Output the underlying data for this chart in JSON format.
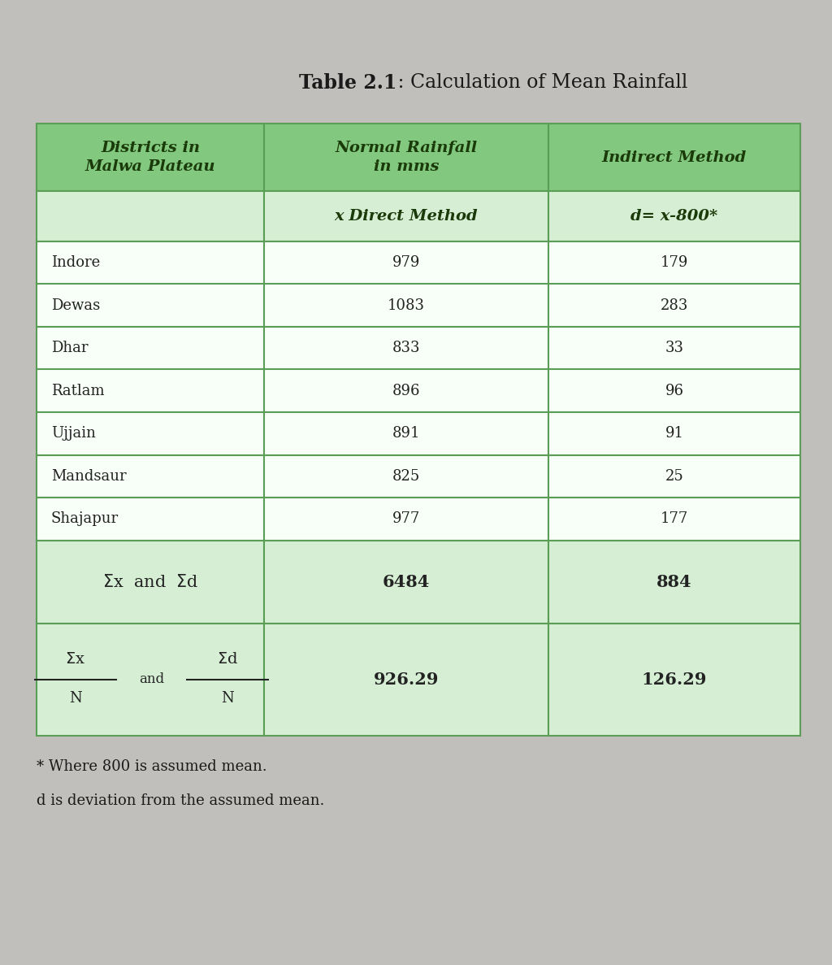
{
  "title_bold": "Table 2.1",
  "title_rest": " : Calculation of Mean Rainfall",
  "bg_color": "#c0bfbb",
  "header_green": "#82c87e",
  "subheader_green": "#d6efd4",
  "cell_white": "#f8fef8",
  "border_color": "#5a9e55",
  "header_text_color": "#1a3a0a",
  "cell_text_color": "#222222",
  "districts": [
    "Indore",
    "Dewas",
    "Dhar",
    "Ratlam",
    "Ujjain",
    "Mandsaur",
    "Shajapur"
  ],
  "direct_values": [
    "979",
    "1083",
    "833",
    "896",
    "891",
    "825",
    "977"
  ],
  "indirect_values": [
    "179",
    "283",
    "33",
    "96",
    "91",
    "25",
    "177"
  ],
  "sum_direct": "6484",
  "sum_indirect": "884",
  "mean_direct": "926.29",
  "mean_indirect": "126.29",
  "footnote1": "* Where 800 is assumed mean.",
  "footnote2": "d is deviation from the assumed mean."
}
